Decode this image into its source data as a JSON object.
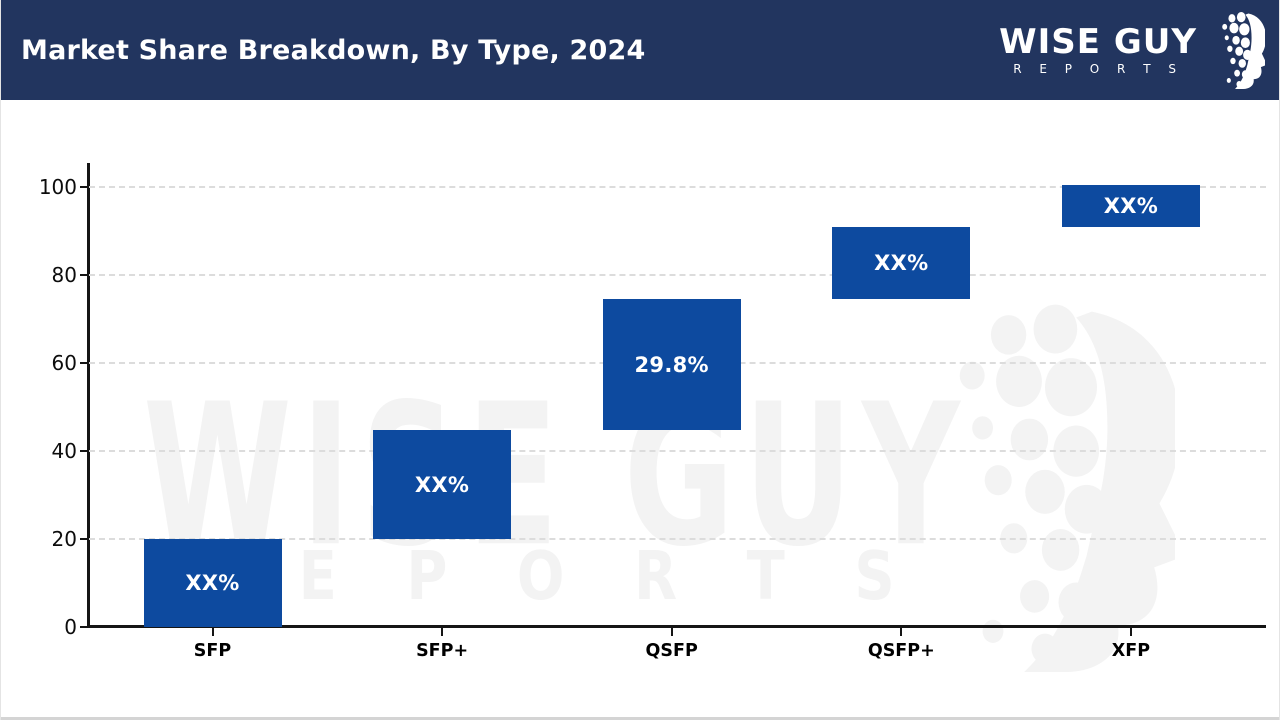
{
  "header": {
    "title": "Market Share Breakdown, By Type, 2024",
    "logo": {
      "wordmark": "WISE GUY",
      "subtitle": "R E P O R T S",
      "face_icon": "dotted-face-profile-icon"
    },
    "bg_color": "#22355f"
  },
  "watermark": {
    "wordmark": "WISE GUY",
    "subtitle": "R E P O R T S",
    "face_icon": "dotted-face-profile-icon",
    "color": "#f3f3f3"
  },
  "chart_data": {
    "type": "bar",
    "variant": "waterfall",
    "title": "Market Share Breakdown, By Type, 2024",
    "categories": [
      "SFP",
      "SFP+",
      "QSFP",
      "QSFP+",
      "XFP"
    ],
    "segments": [
      {
        "category": "SFP",
        "start": 0,
        "end": 20,
        "value": 20,
        "label": "XX%"
      },
      {
        "category": "SFP+",
        "start": 20,
        "end": 44.7,
        "value": 24.7,
        "label": "XX%"
      },
      {
        "category": "QSFP",
        "start": 44.7,
        "end": 74.5,
        "value": 29.8,
        "label": "29.8%"
      },
      {
        "category": "QSFP+",
        "start": 74.5,
        "end": 91,
        "value": 16.5,
        "label": "XX%"
      },
      {
        "category": "XFP",
        "start": 91,
        "end": 100.4,
        "value": 9.4,
        "label": "XX%"
      }
    ],
    "xlabel": "",
    "ylabel": "",
    "ylim": [
      0,
      100
    ],
    "yticks": [
      0,
      20,
      40,
      60,
      80,
      100
    ],
    "grid": "horizontal-dashed",
    "legend": "none",
    "colors": {
      "bar": "#0d4a9f",
      "bar_label": "#ffffff",
      "grid": "#dcdcdc",
      "axis": "#151515",
      "header_bg": "#22355f",
      "watermark": "#f3f3f3"
    }
  }
}
